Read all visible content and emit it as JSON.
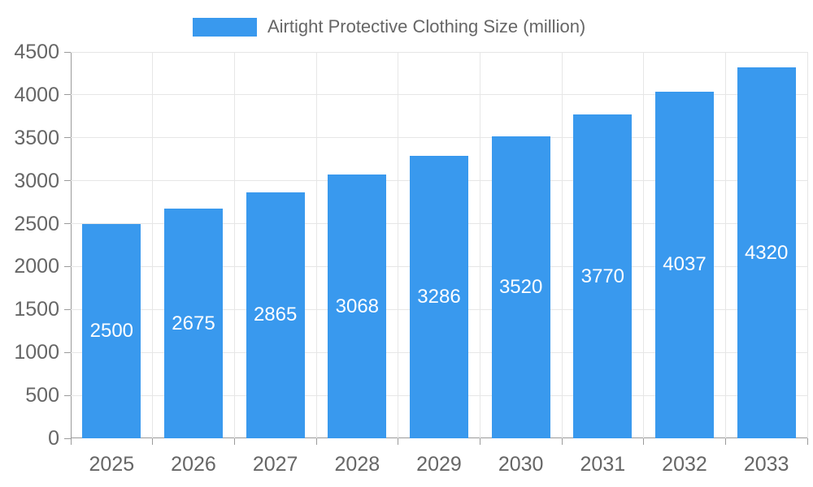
{
  "legend": {
    "label": "Airtight Protective Clothing Size (million)"
  },
  "chart_data": {
    "type": "bar",
    "title": "Airtight Protective Clothing Size (million)",
    "categories": [
      "2025",
      "2026",
      "2027",
      "2028",
      "2029",
      "2030",
      "2031",
      "2032",
      "2033"
    ],
    "values": [
      2500,
      2675,
      2865,
      3068,
      3286,
      3520,
      3770,
      4037,
      4320
    ],
    "xlabel": "",
    "ylabel": "",
    "ylim": [
      0,
      4500
    ],
    "ytick_step": 500,
    "ytick_labels": [
      "0",
      "500",
      "1000",
      "1500",
      "2000",
      "2500",
      "3000",
      "3500",
      "4000",
      "4500"
    ],
    "grid": "horizontal and vertical gridlines on",
    "legend_position": "top-center",
    "bar_color": "#3999EE",
    "value_label_color": "#ffffff",
    "value_label_position": "inside-middle",
    "axis_color": "#9b9b9b",
    "gridline_color": "#e6e6e6",
    "tick_text_color": "#666666"
  }
}
